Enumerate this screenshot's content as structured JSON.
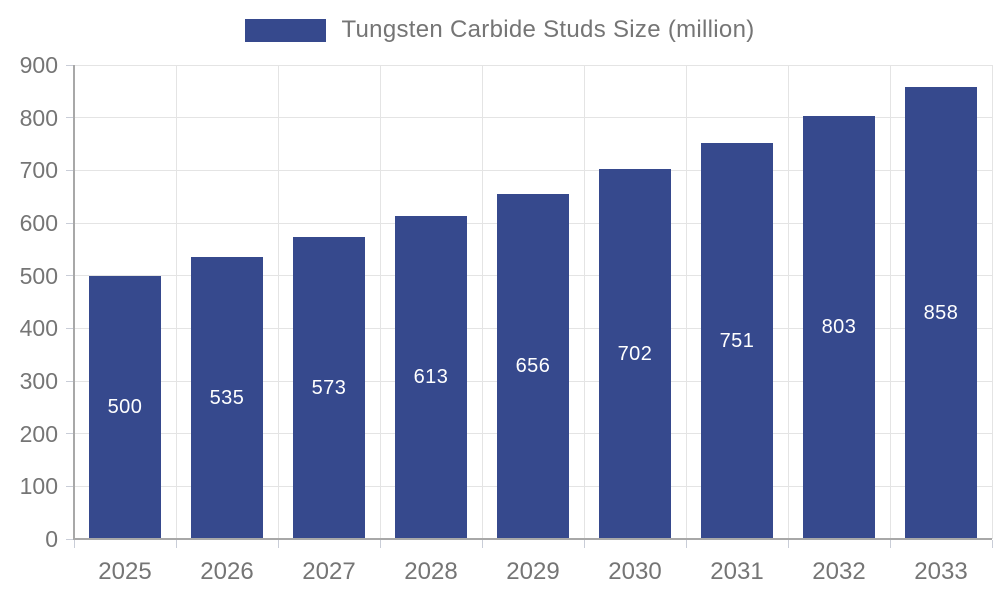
{
  "chart_data": {
    "type": "bar",
    "title": "",
    "xlabel": "",
    "ylabel": "",
    "categories": [
      "2025",
      "2026",
      "2027",
      "2028",
      "2029",
      "2030",
      "2031",
      "2032",
      "2033"
    ],
    "series": [
      {
        "name": "Tungsten Carbide Studs Size (million)",
        "values": [
          500,
          535,
          573,
          613,
          656,
          702,
          751,
          803,
          858
        ]
      }
    ],
    "ylim": [
      0,
      900
    ],
    "ytick_interval": 100,
    "yticks": [
      "0",
      "100",
      "200",
      "300",
      "400",
      "500",
      "600",
      "700",
      "800",
      "900"
    ],
    "grid": true,
    "legend_position": "top-center",
    "value_labels": "inside-center",
    "colors": {
      "bar": "#36498D",
      "bar_value_text": "#ffffff",
      "gridline": "#e4e4e4",
      "axis_line": "#a8a8a8",
      "tick": "#c9cdd7",
      "axis_text": "#757575",
      "background": "#ffffff"
    }
  }
}
